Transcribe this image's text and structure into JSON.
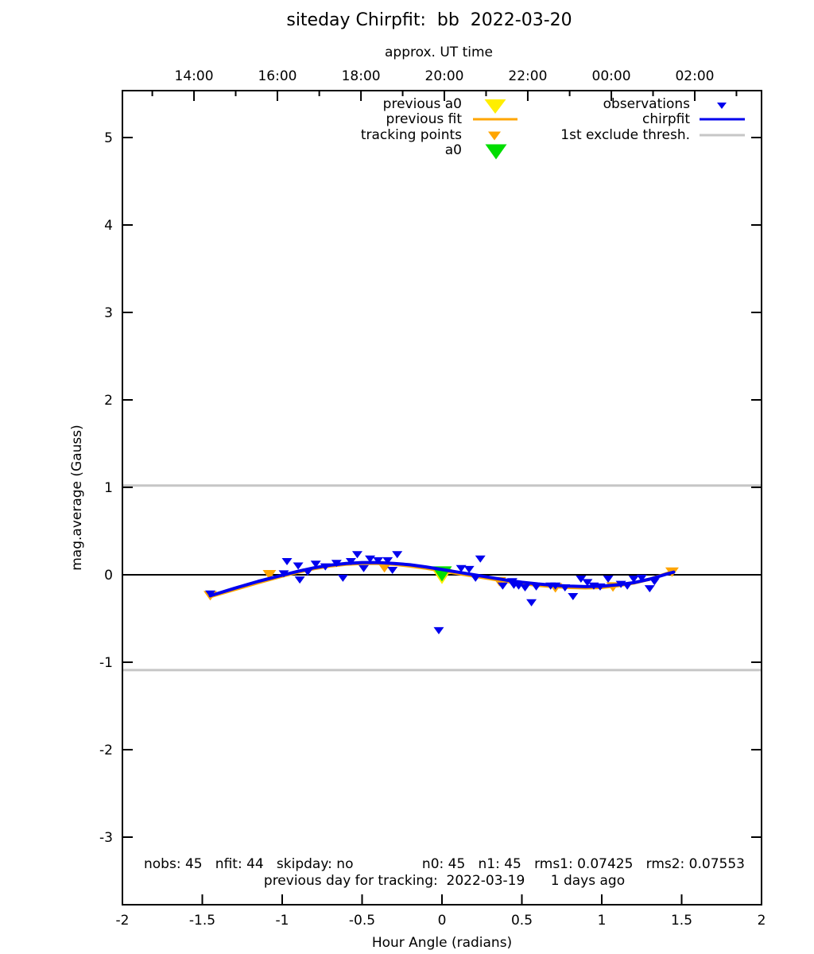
{
  "chart_data": {
    "type": "scatter",
    "title": "siteday Chirpfit:  bb  2022-03-20",
    "x2label": "approx. UT time",
    "xlabel": "Hour Angle (radians)",
    "ylabel": "mag.average (Gauss)",
    "xlim": [
      -2,
      2
    ],
    "ylim": [
      -3.77,
      5.54
    ],
    "grid": false,
    "x_ticks": [
      -2,
      -1.5,
      -1,
      -0.5,
      0,
      0.5,
      1,
      1.5,
      2
    ],
    "x_tick_labels": [
      "-2",
      "-1.5",
      "-1",
      "-0.5",
      "0",
      "0.5",
      "1",
      "1.5",
      "2"
    ],
    "y_ticks": [
      -3,
      -2,
      -1,
      0,
      1,
      2,
      3,
      4,
      5
    ],
    "y_tick_labels": [
      "-3",
      "-2",
      "-1",
      "0",
      "1",
      "2",
      "3",
      "4",
      "5"
    ],
    "x2_ticks": [
      {
        "label": "14:00",
        "x": -1.552
      },
      {
        "label": "16:00",
        "x": -1.03
      },
      {
        "label": "18:00",
        "x": -0.507
      },
      {
        "label": "20:00",
        "x": 0.015
      },
      {
        "label": "22:00",
        "x": 0.537
      },
      {
        "label": "00:00",
        "x": 1.06
      },
      {
        "label": "02:00",
        "x": 1.582
      }
    ],
    "x2_minor_ticks": [
      -1.813,
      -1.291,
      -0.768,
      -0.246,
      0.276,
      0.799,
      1.321,
      1.843
    ],
    "zero_line": 0,
    "thresholds": {
      "label": "1st exclude thresh.",
      "upper": 1.02,
      "lower": -1.09,
      "color": "#c6c6c6"
    },
    "series": {
      "observations": {
        "label": "observations",
        "color": "#0000ee",
        "marker": "triangle-down",
        "points": [
          [
            -1.45,
            -0.22
          ],
          [
            -0.99,
            0.01
          ],
          [
            -0.97,
            0.15
          ],
          [
            -0.9,
            0.1
          ],
          [
            -0.89,
            -0.06
          ],
          [
            -0.84,
            0.03
          ],
          [
            -0.79,
            0.12
          ],
          [
            -0.73,
            0.09
          ],
          [
            -0.66,
            0.13
          ],
          [
            -0.62,
            -0.04
          ],
          [
            -0.57,
            0.15
          ],
          [
            -0.53,
            0.23
          ],
          [
            -0.49,
            0.07
          ],
          [
            -0.45,
            0.18
          ],
          [
            -0.4,
            0.16
          ],
          [
            -0.34,
            0.16
          ],
          [
            -0.31,
            0.05
          ],
          [
            -0.28,
            0.23
          ],
          [
            -0.02,
            -0.64
          ],
          [
            0.12,
            0.07
          ],
          [
            0.17,
            0.06
          ],
          [
            0.21,
            -0.04
          ],
          [
            0.24,
            0.18
          ],
          [
            0.38,
            -0.13
          ],
          [
            0.44,
            -0.08
          ],
          [
            0.45,
            -0.12
          ],
          [
            0.48,
            -0.13
          ],
          [
            0.52,
            -0.15
          ],
          [
            0.56,
            -0.32
          ],
          [
            0.59,
            -0.14
          ],
          [
            0.68,
            -0.13
          ],
          [
            0.71,
            -0.13
          ],
          [
            0.77,
            -0.15
          ],
          [
            0.82,
            -0.25
          ],
          [
            0.87,
            -0.05
          ],
          [
            0.91,
            -0.09
          ],
          [
            0.95,
            -0.13
          ],
          [
            0.99,
            -0.14
          ],
          [
            1.04,
            -0.05
          ],
          [
            1.12,
            -0.11
          ],
          [
            1.16,
            -0.13
          ],
          [
            1.2,
            -0.05
          ],
          [
            1.25,
            -0.04
          ],
          [
            1.3,
            -0.16
          ],
          [
            1.33,
            -0.08
          ]
        ]
      },
      "chirpfit": {
        "label": "chirpfit",
        "color": "#0000ee",
        "points": [
          [
            -1.45,
            -0.24
          ],
          [
            -1.3,
            -0.155
          ],
          [
            -1.15,
            -0.075
          ],
          [
            -1.0,
            -0.005
          ],
          [
            -0.9,
            0.04
          ],
          [
            -0.8,
            0.08
          ],
          [
            -0.7,
            0.11
          ],
          [
            -0.6,
            0.13
          ],
          [
            -0.5,
            0.14
          ],
          [
            -0.4,
            0.14
          ],
          [
            -0.3,
            0.13
          ],
          [
            -0.2,
            0.115
          ],
          [
            -0.1,
            0.09
          ],
          [
            0.0,
            0.06
          ],
          [
            0.1,
            0.03
          ],
          [
            0.2,
            0.0
          ],
          [
            0.3,
            -0.03
          ],
          [
            0.4,
            -0.06
          ],
          [
            0.5,
            -0.085
          ],
          [
            0.6,
            -0.105
          ],
          [
            0.7,
            -0.12
          ],
          [
            0.8,
            -0.13
          ],
          [
            0.9,
            -0.135
          ],
          [
            1.0,
            -0.13
          ],
          [
            1.1,
            -0.115
          ],
          [
            1.2,
            -0.09
          ],
          [
            1.3,
            -0.05
          ],
          [
            1.4,
            0.005
          ],
          [
            1.45,
            0.03
          ]
        ]
      },
      "previous_fit": {
        "label": "previous fit",
        "color": "#ffa500",
        "points": [
          [
            -1.45,
            -0.25
          ],
          [
            -1.3,
            -0.17
          ],
          [
            -1.15,
            -0.09
          ],
          [
            -1.0,
            -0.015
          ],
          [
            -0.9,
            0.03
          ],
          [
            -0.8,
            0.07
          ],
          [
            -0.7,
            0.1
          ],
          [
            -0.6,
            0.12
          ],
          [
            -0.5,
            0.13
          ],
          [
            -0.4,
            0.13
          ],
          [
            -0.3,
            0.12
          ],
          [
            -0.2,
            0.1
          ],
          [
            -0.1,
            0.075
          ],
          [
            0.0,
            0.045
          ],
          [
            0.1,
            0.015
          ],
          [
            0.2,
            -0.015
          ],
          [
            0.3,
            -0.045
          ],
          [
            0.4,
            -0.075
          ],
          [
            0.5,
            -0.1
          ],
          [
            0.6,
            -0.12
          ],
          [
            0.7,
            -0.135
          ],
          [
            0.8,
            -0.145
          ],
          [
            0.9,
            -0.15
          ],
          [
            1.0,
            -0.145
          ],
          [
            1.1,
            -0.125
          ],
          [
            1.2,
            -0.095
          ],
          [
            1.3,
            -0.05
          ],
          [
            1.4,
            0.01
          ],
          [
            1.44,
            0.035
          ]
        ]
      },
      "tracking_points": {
        "label": "tracking points",
        "color": "#ffa500",
        "marker": "triangle-down",
        "points": [
          [
            -1.45,
            -0.24
          ],
          [
            -1.08,
            0.0
          ],
          [
            -0.36,
            0.08
          ],
          [
            0.36,
            -0.08
          ],
          [
            0.71,
            -0.15
          ],
          [
            1.07,
            -0.14
          ],
          [
            1.44,
            0.03
          ]
        ]
      },
      "a0": {
        "label": "a0",
        "color": "#00dd00",
        "marker": "triangle-down",
        "points": [
          [
            0.0,
            0.01
          ]
        ]
      },
      "previous_a0": {
        "label": "previous a0",
        "color": "#ffee00",
        "marker": "triangle-down",
        "points": [
          [
            0.0,
            -0.02
          ]
        ]
      }
    },
    "annotations": {
      "stats_line1": "nobs: 45   nfit: 44   skipday: no                n0: 45   n1: 45   rms1: 0.07425   rms2: 0.07553",
      "stats_line2": "previous day for tracking:  2022-03-19      1 days ago"
    }
  }
}
